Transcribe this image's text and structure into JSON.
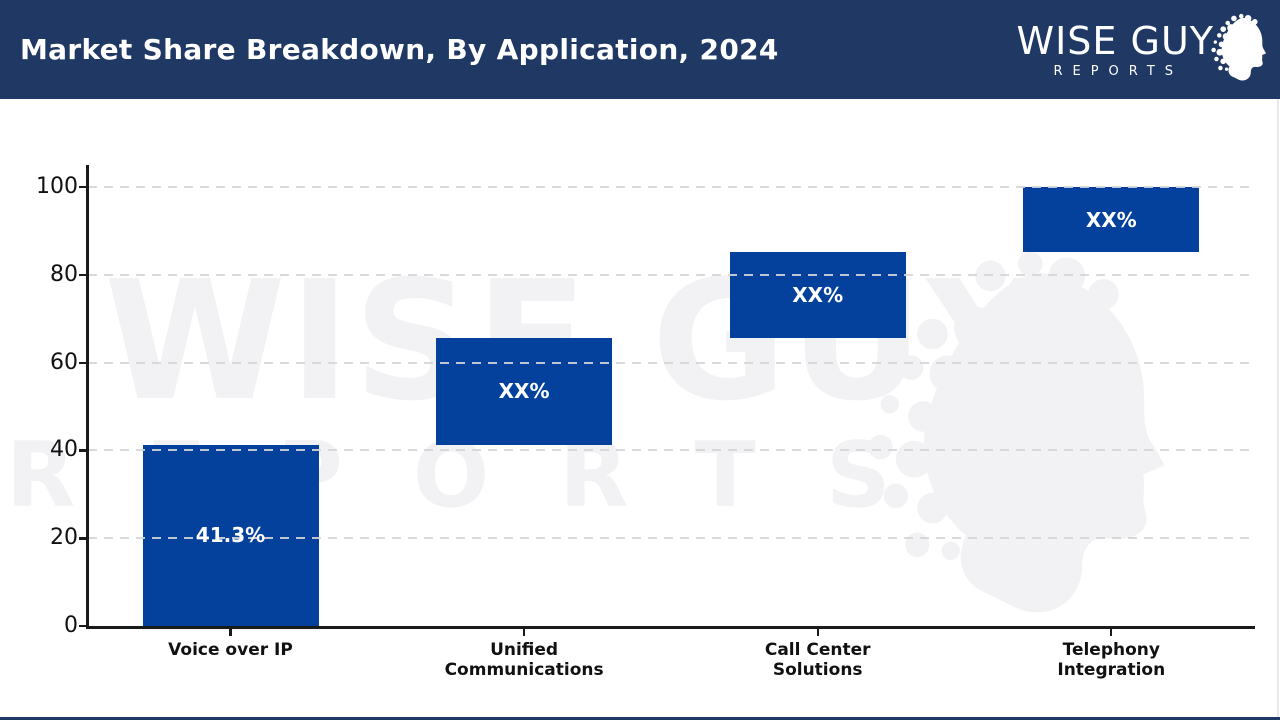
{
  "header": {
    "title": "Market Share Breakdown, By Application, 2024",
    "logo": {
      "line1": "WISE GUY",
      "line2": "REPORTS"
    }
  },
  "watermark": {
    "line1": "WISE GUY",
    "line2": "REPORTS"
  },
  "chart_data": {
    "type": "bar",
    "subtype": "floating-waterfall",
    "title": "Market Share Breakdown, By Application, 2024",
    "categories": [
      "Voice over IP",
      "Unified Communications",
      "Call Center Solutions",
      "Telephony Integration"
    ],
    "category_label_lines": [
      [
        "Voice over IP"
      ],
      [
        "Unified",
        "Communications"
      ],
      [
        "Call Center",
        "Solutions"
      ],
      [
        "Telephony",
        "Integration"
      ]
    ],
    "segments": [
      {
        "category": "Voice over IP",
        "start": 0,
        "end": 41.3,
        "label": "41.3%"
      },
      {
        "category": "Unified Communications",
        "start": 41.3,
        "end": 65.6,
        "label": "XX%"
      },
      {
        "category": "Call Center Solutions",
        "start": 65.6,
        "end": 85.1,
        "label": "XX%"
      },
      {
        "category": "Telephony Integration",
        "start": 85.1,
        "end": 100,
        "label": "XX%"
      }
    ],
    "xlabel": "",
    "ylabel": "",
    "ylim": [
      0,
      100
    ],
    "yticks": [
      0,
      20,
      40,
      60,
      80,
      100
    ],
    "grid": "horizontal dashed",
    "legend": "none",
    "bar_color": "#04419C",
    "bar_label_color": "#FFFFFF"
  },
  "colors": {
    "header_bg": "#1F3864",
    "bar": "#04419C",
    "watermark": "#F2F2F4",
    "gridline": "#D5D5D8",
    "axis": "#1A1A1A",
    "background": "#FFFFFF"
  }
}
